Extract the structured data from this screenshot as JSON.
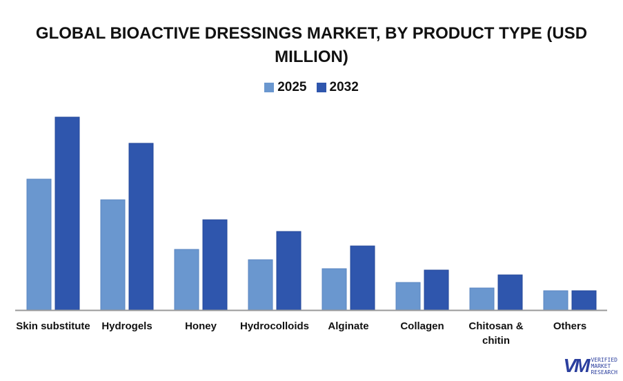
{
  "chart_data": {
    "type": "bar",
    "title": "GLOBAL BIOACTIVE DRESSINGS MARKET, BY PRODUCT TYPE (USD MILLION)",
    "categories": [
      "Skin substitute",
      "Hydrogels",
      "Honey",
      "Hydrocolloids",
      "Alginate",
      "Collagen",
      "Chitosan & chitin",
      "Others"
    ],
    "series": [
      {
        "name": "2025",
        "color": "#6a97cf",
        "values": [
          190,
          160,
          88,
          73,
          60,
          40,
          32,
          28
        ]
      },
      {
        "name": "2032",
        "color": "#2f56ad",
        "values": [
          280,
          242,
          131,
          114,
          93,
          58,
          51,
          28
        ]
      }
    ],
    "ylim": [
      0,
      300
    ],
    "grid": false,
    "legend": "top",
    "xlabel": "",
    "ylabel": ""
  },
  "logo": {
    "mark": "VM",
    "text": "VERIFIED MARKET RESEARCH"
  }
}
